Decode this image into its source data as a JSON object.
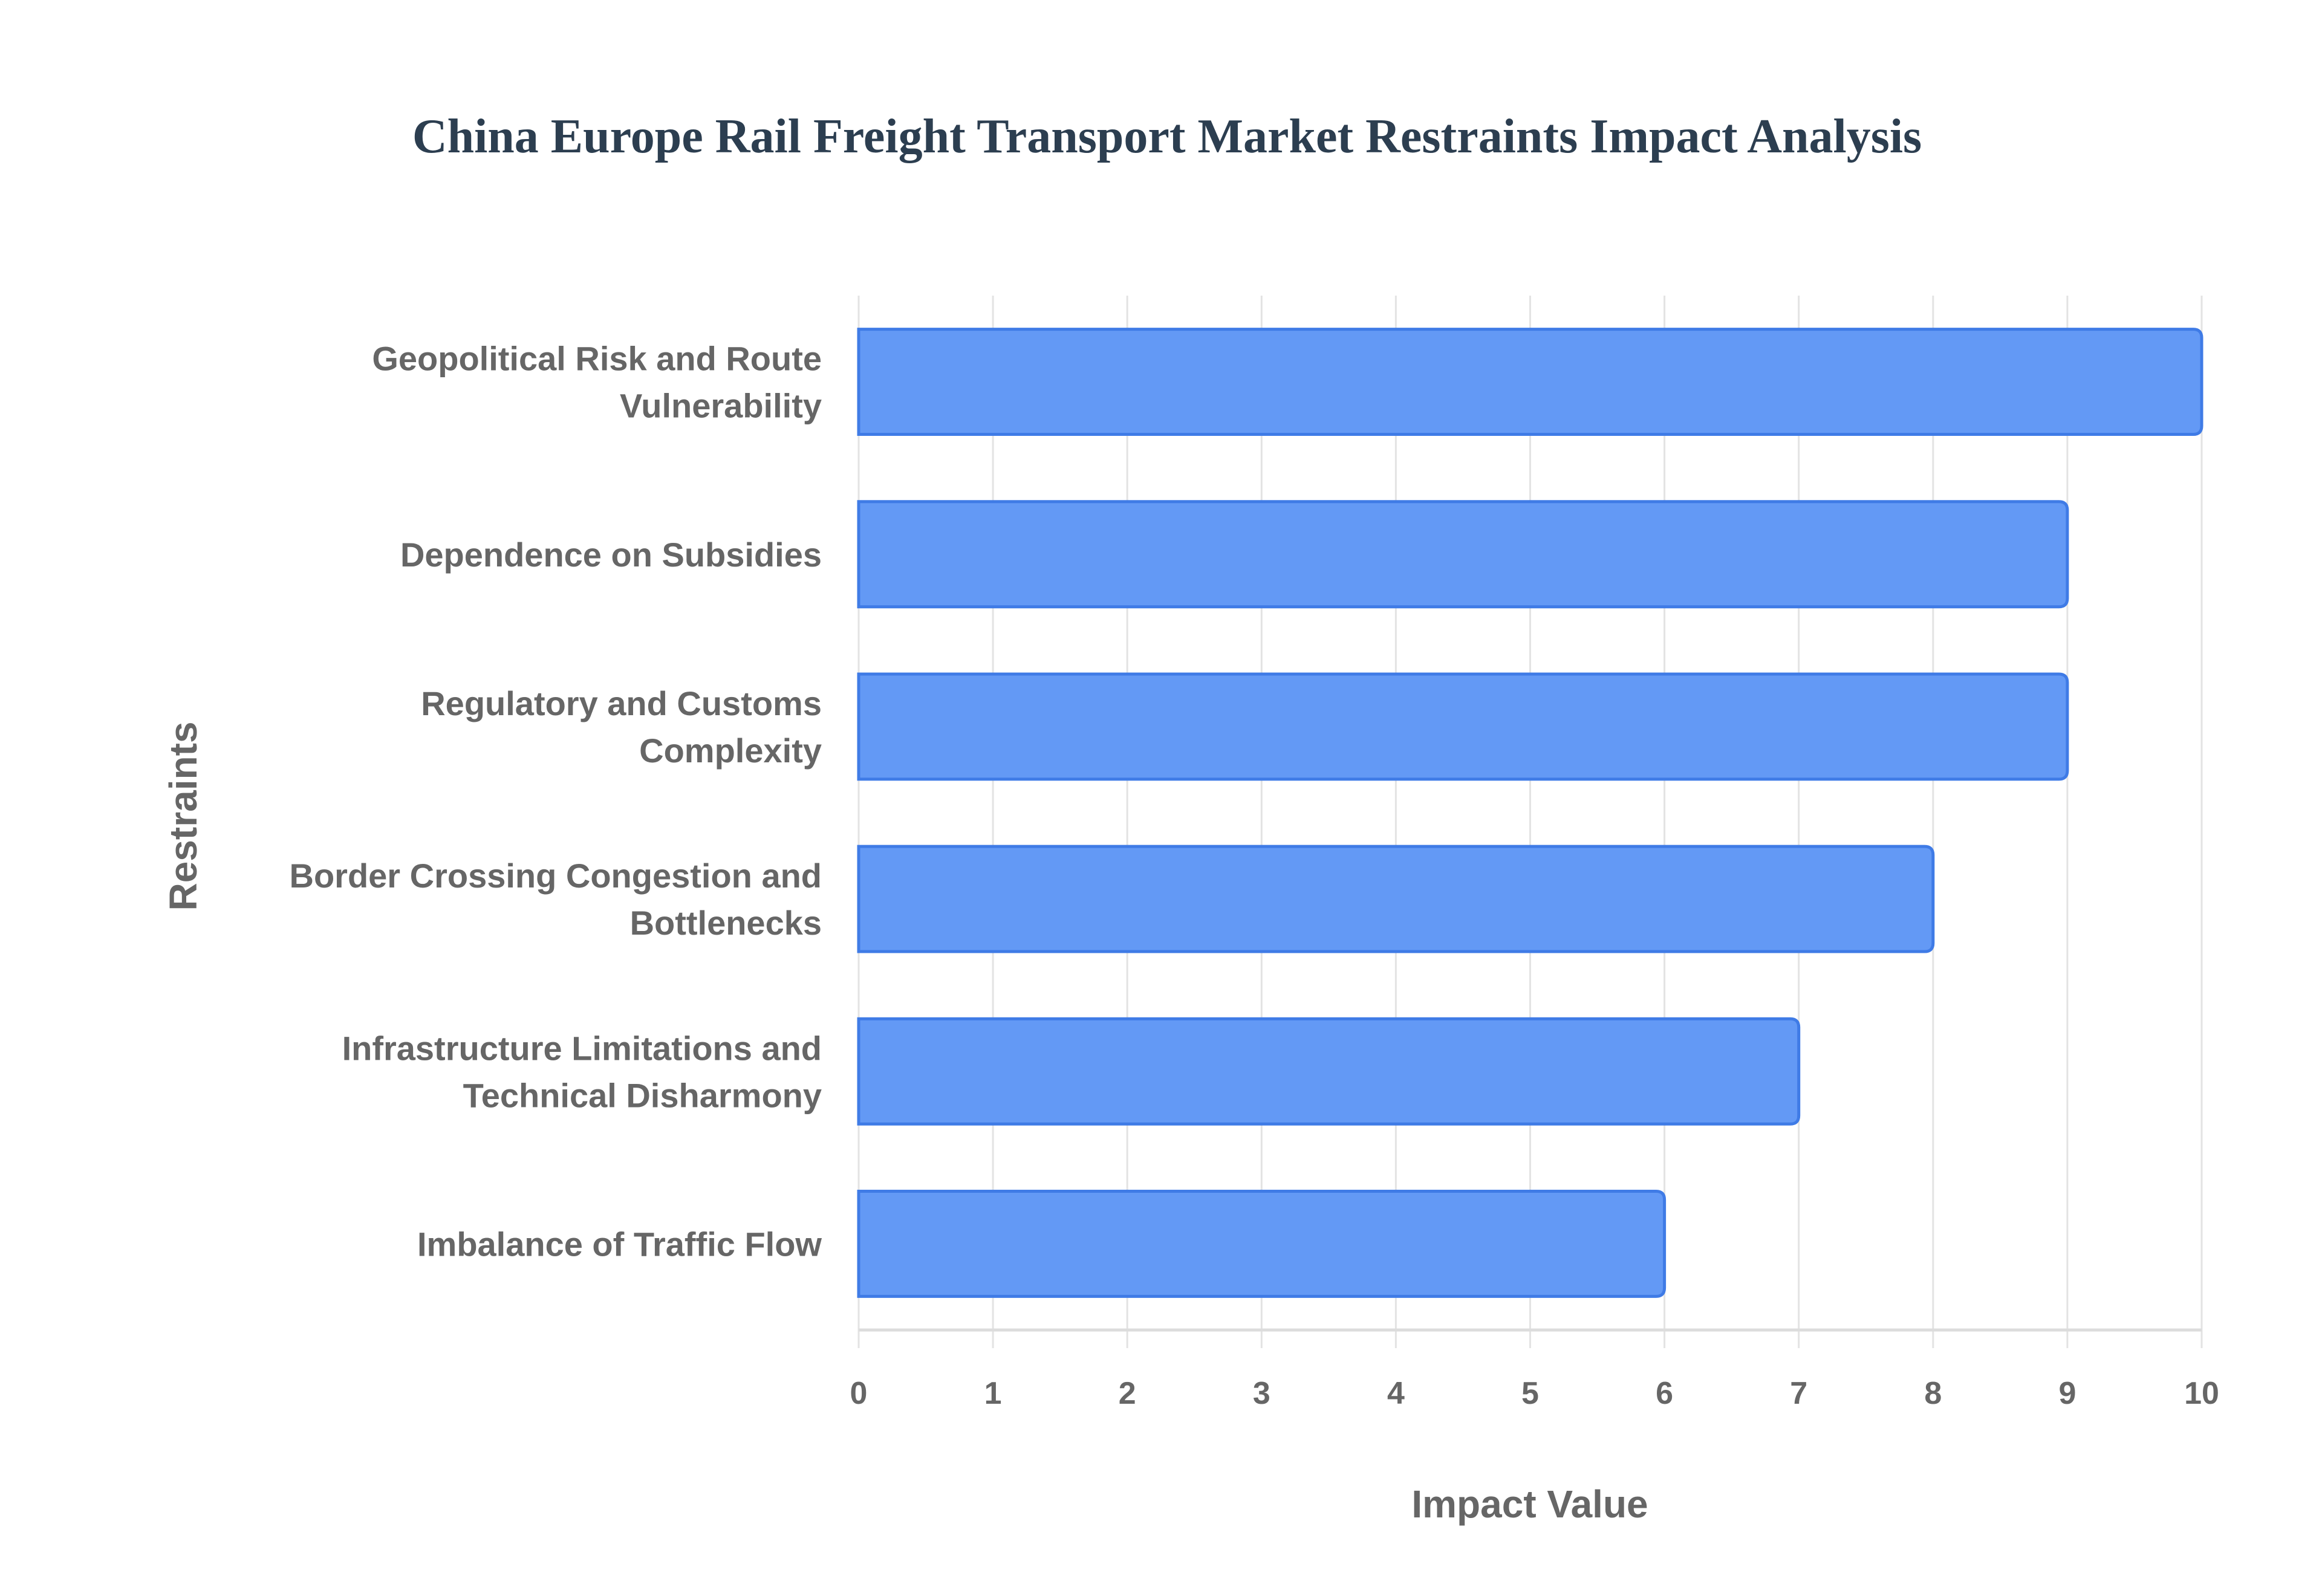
{
  "chart_data": {
    "type": "bar",
    "orientation": "horizontal",
    "title": "China Europe Rail Freight Transport Market Restraints Impact Analysis",
    "xlabel": "Impact Value",
    "ylabel": "Restraints",
    "categories": [
      [
        "Geopolitical Risk and Route",
        "Vulnerability"
      ],
      [
        "Dependence on Subsidies"
      ],
      [
        "Regulatory and Customs",
        "Complexity"
      ],
      [
        "Border Crossing Congestion and",
        "Bottlenecks"
      ],
      [
        "Infrastructure Limitations and",
        "Technical Disharmony"
      ],
      [
        "Imbalance of Traffic Flow"
      ]
    ],
    "values": [
      10,
      9,
      9,
      8,
      7,
      6
    ],
    "xlim": [
      0,
      10
    ],
    "xticks": [
      "0",
      "1",
      "2",
      "3",
      "4",
      "5",
      "6",
      "7",
      "8",
      "9",
      "10"
    ],
    "grid": true,
    "colors": {
      "bar_fill": "#6399f5",
      "bar_stroke": "#3f7be6",
      "grid": "#e3e3e3"
    }
  }
}
